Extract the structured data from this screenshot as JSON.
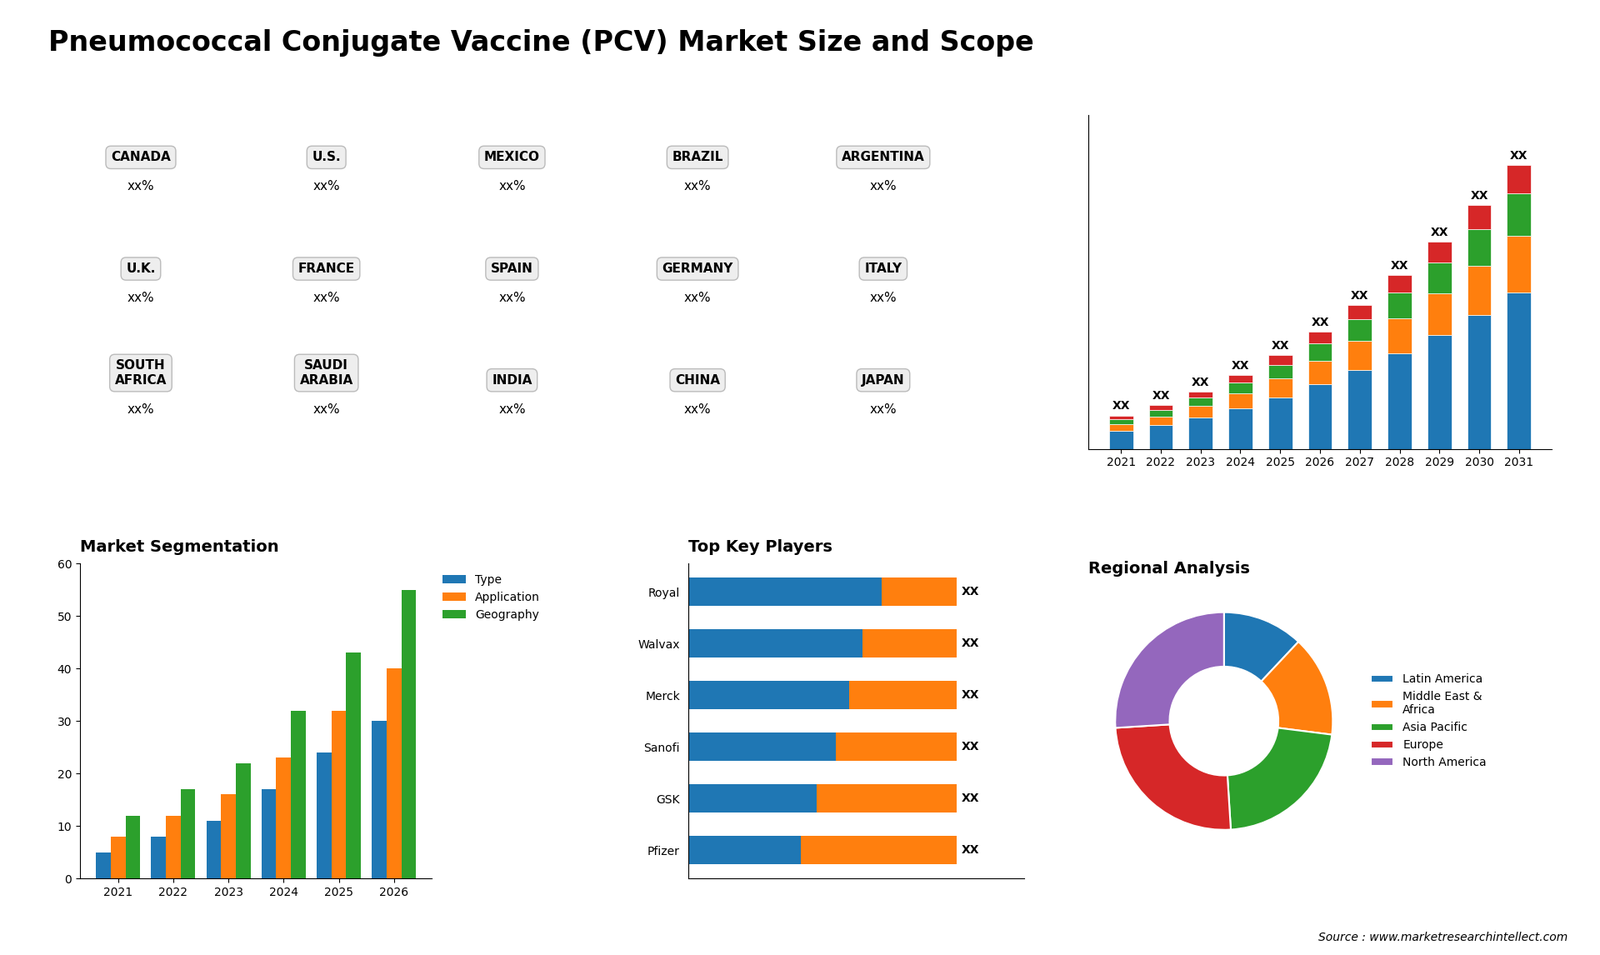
{
  "title": "Pneumococcal Conjugate Vaccine (PCV) Market Size and Scope",
  "annotations": [
    "Source : www.marketresearchintellect.com"
  ],
  "chart_data": [
    {
      "type": "map",
      "annotations": [
        {
          "text": "CANADA",
          "label": "xx%"
        },
        {
          "text": "U.S.",
          "label": "xx%"
        },
        {
          "text": "MEXICO",
          "label": "xx%"
        },
        {
          "text": "BRAZIL",
          "label": "xx%"
        },
        {
          "text": "ARGENTINA",
          "label": "xx%"
        },
        {
          "text": "U.K.",
          "label": "xx%"
        },
        {
          "text": "FRANCE",
          "label": "xx%"
        },
        {
          "text": "SPAIN",
          "label": "xx%"
        },
        {
          "text": "GERMANY",
          "label": "xx%"
        },
        {
          "text": "ITALY",
          "label": "xx%"
        },
        {
          "text": "SOUTH\nAFRICA",
          "label": "xx%"
        },
        {
          "text": "SAUDI\nARABIA",
          "label": "xx%"
        },
        {
          "text": "INDIA",
          "label": "xx%"
        },
        {
          "text": "CHINA",
          "label": "xx%"
        },
        {
          "text": "JAPAN",
          "label": "xx%"
        }
      ]
    },
    {
      "type": "bar",
      "stacked": true,
      "tick_labels": "x",
      "categories": [
        "2021",
        "2022",
        "2023",
        "2024",
        "2025",
        "2026",
        "2027",
        "2028",
        "2029",
        "2030",
        "2031"
      ],
      "series": [
        {
          "values": [
            0.55,
            0.715,
            0.935,
            1.21,
            1.54,
            1.925,
            2.365,
            2.86,
            3.41,
            4.015,
            4.675
          ]
        },
        {
          "values": [
            0.2,
            0.26,
            0.34,
            0.44,
            0.56,
            0.7,
            0.86,
            1.04,
            1.24,
            1.46,
            1.7
          ]
        },
        {
          "values": [
            0.15,
            0.195,
            0.255,
            0.33,
            0.42,
            0.525,
            0.645,
            0.78,
            0.93,
            1.095,
            1.275
          ]
        },
        {
          "values": [
            0.1,
            0.13,
            0.17,
            0.22,
            0.28,
            0.35,
            0.43,
            0.52,
            0.62,
            0.73,
            0.85
          ]
        }
      ],
      "ylim": [
        0,
        10
      ],
      "annotations": [
        "XX",
        "XX",
        "XX",
        "XX",
        "XX",
        "XX",
        "XX",
        "XX",
        "XX",
        "XX",
        "XX"
      ]
    },
    {
      "type": "bar",
      "title": "Market Segmentation",
      "categories": [
        "2021",
        "2022",
        "2023",
        "2024",
        "2025",
        "2026"
      ],
      "series": [
        {
          "name": "Type",
          "values": [
            5,
            8,
            11,
            17,
            24,
            30
          ]
        },
        {
          "name": "Application",
          "values": [
            8,
            12,
            16,
            23,
            32,
            40
          ]
        },
        {
          "name": "Geography",
          "values": [
            12,
            17,
            22,
            32,
            43,
            55
          ]
        }
      ],
      "ylim": [
        0,
        60
      ],
      "yticks": [
        0,
        10,
        20,
        30,
        40,
        50,
        60
      ],
      "legend": "upper left"
    },
    {
      "type": "bar",
      "title": "Top Key Players",
      "orientation": "horizontal",
      "stacked": true,
      "tick_labels": "y",
      "categories": [
        "Royal",
        "Walvax",
        "Merck",
        "Sanofi",
        "GSK",
        "Pfizer"
      ],
      "series": [
        {
          "values": [
            0.72,
            0.65,
            0.6,
            0.55,
            0.48,
            0.42
          ]
        },
        {
          "values": [
            0.28,
            0.35,
            0.4,
            0.45,
            0.52,
            0.58
          ]
        }
      ],
      "xlim": [
        0,
        1.25
      ],
      "annotations": [
        "XX",
        "XX",
        "XX",
        "XX",
        "XX",
        "XX"
      ]
    },
    {
      "type": "pie",
      "title": "Regional Analysis",
      "categories": [
        "Latin America",
        "Middle East &\nAfrica",
        "Asia Pacific",
        "Europe",
        "North America"
      ],
      "values": [
        12,
        15,
        22,
        25,
        26
      ],
      "legend": "center left"
    }
  ]
}
